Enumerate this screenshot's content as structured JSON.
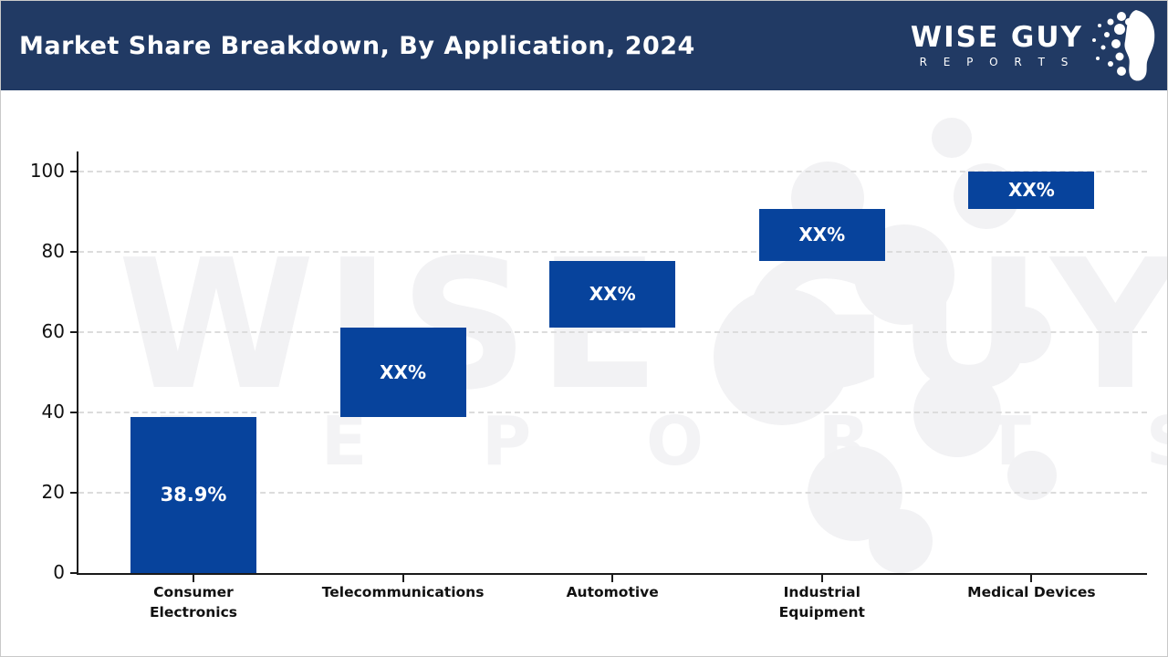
{
  "header": {
    "title": "Market Share Breakdown, By Application, 2024",
    "logo": {
      "name": "WISE GUY",
      "sub": "R E P O R T S"
    }
  },
  "watermark": {
    "line1": "WISE GUY",
    "line2": "R E P O R T S"
  },
  "colors": {
    "header_bg": "#213a64",
    "bar": "#07439c",
    "bar_label": "#ffffff",
    "axis": "#1a1a1a",
    "gridline": "#dcdcdc",
    "watermark": "#f2f2f4"
  },
  "chart_data": {
    "type": "bar",
    "subtype": "waterfall",
    "title": "Market Share Breakdown, By Application, 2024",
    "categories": [
      "Consumer\nElectronics",
      "Telecommunications",
      "Automotive",
      "Industrial\nEquipment",
      "Medical Devices"
    ],
    "bars": [
      {
        "category": "Consumer Electronics",
        "start": 0,
        "end": 38.9,
        "label": "38.9%"
      },
      {
        "category": "Telecommunications",
        "start": 38.9,
        "end": 61.1,
        "label": "XX%"
      },
      {
        "category": "Automotive",
        "start": 61.1,
        "end": 77.8,
        "label": "XX%"
      },
      {
        "category": "Industrial Equipment",
        "start": 77.8,
        "end": 90.7,
        "label": "XX%"
      },
      {
        "category": "Medical Devices",
        "start": 90.7,
        "end": 100,
        "label": "XX%"
      }
    ],
    "yticks": [
      0,
      20,
      40,
      60,
      80,
      100
    ],
    "ylim": [
      0,
      105
    ],
    "xlabel": "",
    "ylabel": "",
    "grid": "horizontal-dashed",
    "legend": "none",
    "bar_color": "#07439c"
  }
}
